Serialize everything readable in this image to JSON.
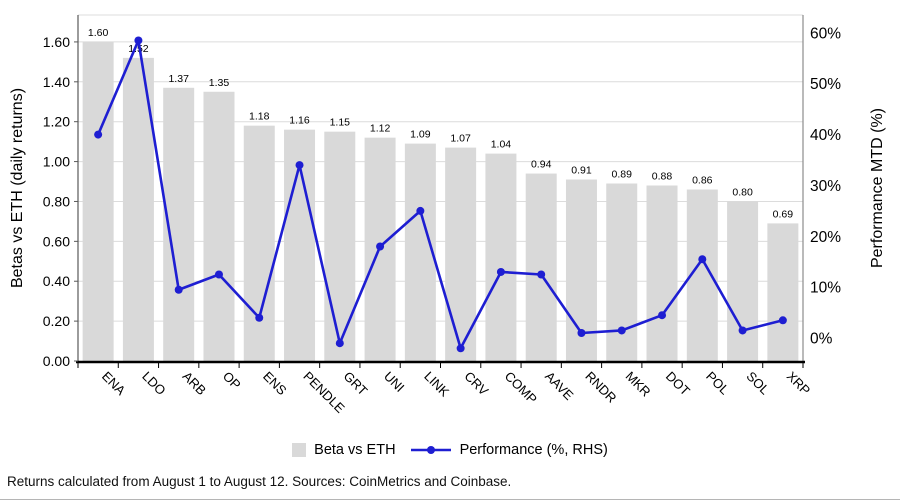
{
  "figure": {
    "footer": "Returns calculated from August 1 to August 12. Sources: CoinMetrics and Coinbase."
  },
  "legend": {
    "bar_label": "Beta vs ETH",
    "line_label": "Performance (%, RHS)"
  },
  "colors": {
    "bar": "#d9d9d9",
    "line": "#1e1ed2",
    "grid": "#dcdcdc",
    "axis_left": "#595959",
    "axis_right": "#8c8c8c",
    "axis_bottom": "#000000",
    "text": "#000000"
  },
  "chart_data": {
    "type": "bar",
    "combo": "bar+line",
    "title": "",
    "categories": [
      "ENA",
      "LDO",
      "ARB",
      "OP",
      "ENS",
      "PENDLE",
      "GRT",
      "UNI",
      "LINK",
      "CRV",
      "COMP",
      "AAVE",
      "RNDR",
      "MKR",
      "DOT",
      "POL",
      "SOL",
      "XRP"
    ],
    "series": [
      {
        "name": "Beta vs ETH",
        "type": "bar",
        "axis": "left",
        "values": [
          1.6,
          1.52,
          1.37,
          1.35,
          1.18,
          1.16,
          1.15,
          1.12,
          1.09,
          1.07,
          1.04,
          0.94,
          0.91,
          0.89,
          0.88,
          0.86,
          0.8,
          0.69
        ]
      },
      {
        "name": "Performance (%, RHS)",
        "type": "line",
        "axis": "right",
        "values": [
          40,
          58.5,
          9.5,
          12.5,
          4,
          34,
          -1,
          18,
          25,
          -2,
          13,
          12.5,
          1,
          1.5,
          4.5,
          15.5,
          1.5,
          3.5
        ]
      }
    ],
    "left_axis": {
      "label": "Betas vs ETH (daily returns)",
      "min": 0,
      "max": 1.735,
      "tick_step": 0.2,
      "ticks": [
        "0.00",
        "0.20",
        "0.40",
        "0.60",
        "0.80",
        "1.00",
        "1.20",
        "1.40",
        "1.60"
      ]
    },
    "right_axis": {
      "label": "Performance MTD (%)",
      "min": -4.5,
      "max": 63.5,
      "tick_step": 10,
      "ticks": [
        "0%",
        "10%",
        "20%",
        "30%",
        "40%",
        "50%",
        "60%"
      ]
    },
    "grid": true,
    "legend_position": "bottom",
    "bar_value_labels_shown": true
  }
}
